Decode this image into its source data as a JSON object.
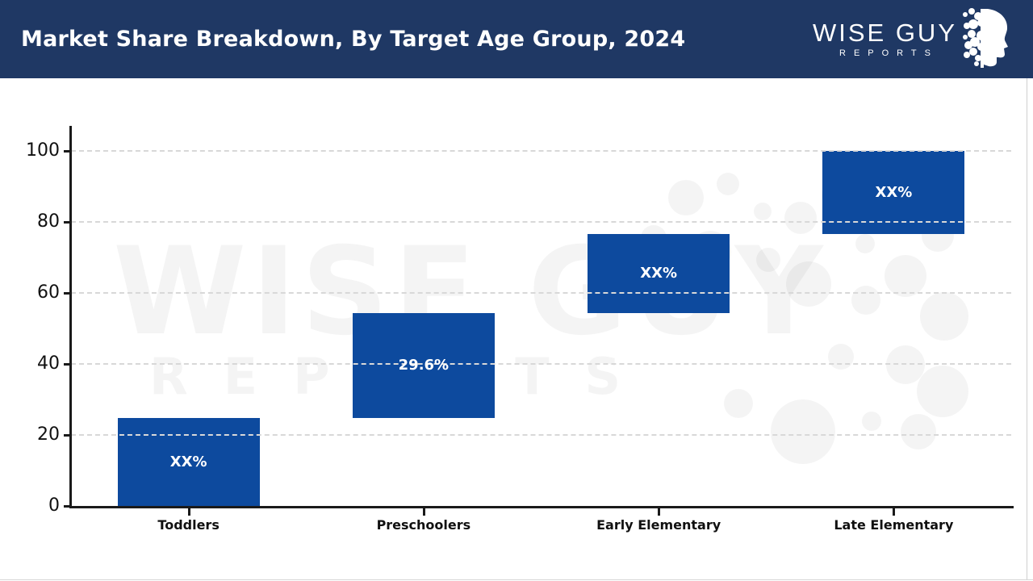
{
  "header": {
    "title": "Market Share Breakdown, By Target Age Group, 2024",
    "bg_color": "#1f3864",
    "logo": {
      "line1": "WISE GUY",
      "line2": "REPORTS"
    }
  },
  "watermark": {
    "line1": "WISE GUY",
    "line2": "REPORTS"
  },
  "chart_data": {
    "type": "bar",
    "subtype": "waterfall-floating-bars",
    "title": "Market Share Breakdown, By Target Age Group, 2024",
    "xlabel": "",
    "ylabel": "",
    "categories": [
      "Toddlers",
      "Preschoolers",
      "Early Elementary",
      "Late Elementary"
    ],
    "segments": [
      [
        0,
        24.8
      ],
      [
        24.8,
        54.4
      ],
      [
        54.4,
        76.6
      ],
      [
        76.6,
        100
      ]
    ],
    "segment_heights": [
      24.8,
      29.6,
      22.2,
      23.4
    ],
    "bar_labels": [
      "XX%",
      "29.6%",
      "XX%",
      "XX%"
    ],
    "yticks": [
      0,
      20,
      40,
      60,
      80,
      100
    ],
    "ylim": [
      0,
      106.6
    ],
    "grid": "horizontal dashed, drawn over bars",
    "legend": "none",
    "bar_color": "#0d4a9e",
    "bar_label_color": "#ffffff",
    "axis_color": "#1a1a1a",
    "gridline_color": "#d8d8d8"
  }
}
